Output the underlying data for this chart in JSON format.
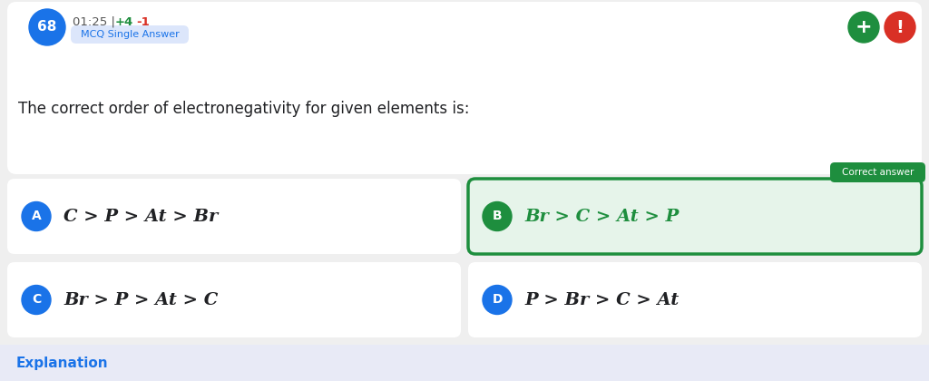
{
  "bg_color": "#efefef",
  "card_bg": "#ffffff",
  "question_number": "68",
  "question_num_bg": "#1a73e8",
  "question_num_color": "#ffffff",
  "timer": "01:25 |",
  "plus4": "+4",
  "minus1": "-1",
  "tag": "MCQ Single Answer",
  "tag_bg": "#dce6fb",
  "tag_color": "#1a73e8",
  "question_text": "The correct order of electronegativity for given elements is:",
  "options": [
    {
      "label": "A",
      "text": "C > P > At > Br",
      "correct": false
    },
    {
      "label": "B",
      "text": "Br > C > At > P",
      "correct": true
    },
    {
      "label": "C",
      "text": "Br > P > At > C",
      "correct": false
    },
    {
      "label": "D",
      "text": "P > Br > C > At",
      "correct": false
    }
  ],
  "correct_answer_label": "Correct answer",
  "option_label_bg_normal": "#1a73e8",
  "option_label_bg_correct": "#1e8e3e",
  "option_label_color": "#ffffff",
  "option_card_bg": "#ffffff",
  "correct_card_bg": "#e6f4ea",
  "correct_card_border": "#1e8e3e",
  "correct_tag_bg": "#1e8e3e",
  "correct_tag_color": "#ffffff",
  "explanation_text": "Explanation",
  "explanation_color": "#1a73e8",
  "explanation_bg": "#e8eaf6",
  "plus_icon_color": "#1e8e3e",
  "alert_icon_color": "#d93025",
  "timer_color": "#555555",
  "question_text_color": "#202124",
  "option_text_color": "#202124"
}
